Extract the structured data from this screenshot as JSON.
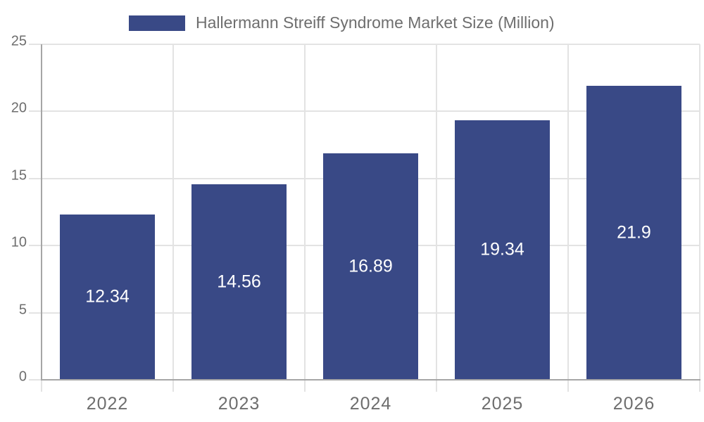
{
  "chart_data": {
    "type": "bar",
    "title": "Hallermann Streiff Syndrome Market Size (Million)",
    "series_name": "Hallermann Streiff Syndrome Market Size (Million)",
    "categories": [
      "2022",
      "2023",
      "2024",
      "2025",
      "2026"
    ],
    "values": [
      12.34,
      14.56,
      16.89,
      19.34,
      21.9
    ],
    "value_labels": [
      "12.34",
      "14.56",
      "16.89",
      "19.34",
      "21.9"
    ],
    "xlabel": "",
    "ylabel": "",
    "ylim": [
      0,
      25
    ],
    "y_ticks": [
      0,
      5,
      10,
      15,
      20,
      25
    ],
    "y_tick_labels": [
      "0",
      "5",
      "10",
      "15",
      "20",
      "25"
    ],
    "grid": true,
    "legend_position": "top-left"
  },
  "colors": {
    "bar": "#394986",
    "grid": "#e3e3e3",
    "axis": "#a6a6a6",
    "tick_text": "#6e6e6e",
    "legend_text": "#6e6e6e",
    "value_text": "#ffffff",
    "background": "#ffffff"
  }
}
